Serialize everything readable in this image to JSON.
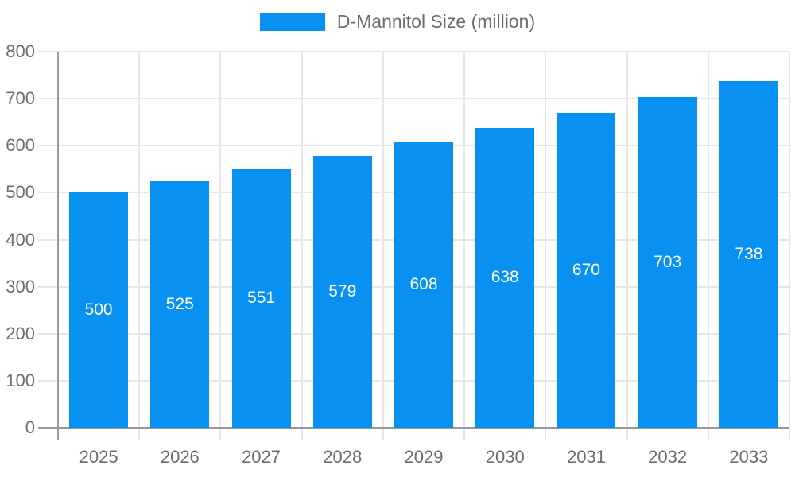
{
  "legend": {
    "label": "D-Mannitol Size (million)"
  },
  "colors": {
    "accent": "#0991F2",
    "axis_text": "#6d6d6d",
    "grid": "#e6e6e6",
    "axis_line": "#999999",
    "bar_label": "#ffffff",
    "background": "#ffffff"
  },
  "chart_data": {
    "type": "bar",
    "title": "D-Mannitol Size (million)",
    "categories": [
      "2025",
      "2026",
      "2027",
      "2028",
      "2029",
      "2030",
      "2031",
      "2032",
      "2033"
    ],
    "series": [
      {
        "name": "D-Mannitol Size (million)",
        "values": [
          500,
          525,
          551,
          579,
          608,
          638,
          670,
          703,
          738
        ]
      }
    ],
    "xlabel": "",
    "ylabel": "",
    "ylim": [
      0,
      800
    ],
    "ytick_interval": 100,
    "ytick_labels": [
      "0",
      "100",
      "200",
      "300",
      "400",
      "500",
      "600",
      "700",
      "800"
    ],
    "grid": true,
    "legend_position": "top-center",
    "value_labels": "inside-center"
  }
}
